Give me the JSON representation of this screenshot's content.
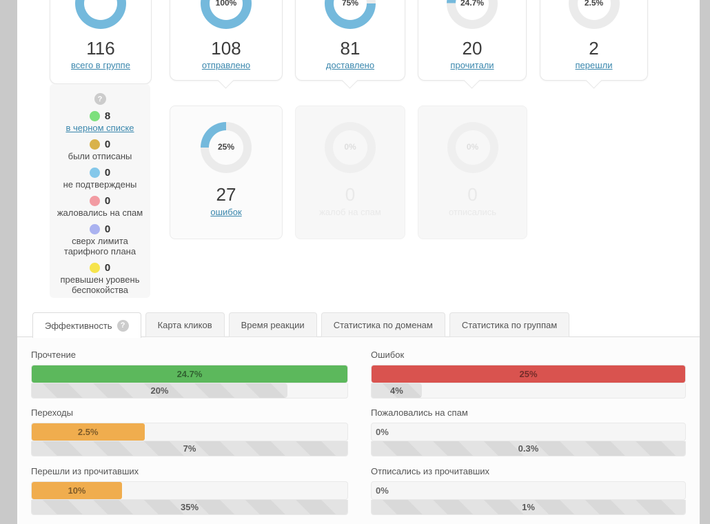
{
  "colors": {
    "donut_blue": "#74b9dc",
    "donut_track": "#ebebeb",
    "donut_track_muted": "#efefef",
    "green": "#5cb85c",
    "red": "#d9534f",
    "orange": "#f0ad4e",
    "link_blue": "#3a87ad",
    "side_strip": "#c9c9c9"
  },
  "top_cards": [
    {
      "value": "116",
      "label": "всего в группе",
      "percent": "",
      "pct": 100
    },
    {
      "value": "108",
      "label": "отправлено",
      "percent": "100%",
      "pct": 100
    },
    {
      "value": "81",
      "label": "доставлено",
      "percent": "75%",
      "pct": 75
    },
    {
      "value": "20",
      "label": "прочитали",
      "percent": "24.7%",
      "pct": 24.7
    },
    {
      "value": "2",
      "label": "перешли",
      "percent": "2.5%",
      "pct": 2.5
    }
  ],
  "blacklist_panel": {
    "items": [
      {
        "count": "8",
        "label": "в черном списке",
        "dot_color": "#7de07d"
      },
      {
        "count": "0",
        "label": "были отписаны",
        "dot_color": "#d9b24a"
      },
      {
        "count": "0",
        "label": "не подтверждены",
        "dot_color": "#85c8ea"
      },
      {
        "count": "0",
        "label": "жаловались на спам",
        "dot_color": "#f29ba2"
      },
      {
        "count": "0",
        "label": "сверх лимита тарифного плана",
        "dot_color": "#aab2f0"
      },
      {
        "count": "0",
        "label": "превышен уровень беспокойства",
        "dot_color": "#f6e44c"
      }
    ]
  },
  "mid_cards": [
    {
      "value": "27",
      "label": "ошибок",
      "percent": "25%",
      "pct": 25
    },
    {
      "value": "0",
      "label": "жалоб на спам",
      "percent": "0%",
      "pct": 0
    },
    {
      "value": "0",
      "label": "отписались",
      "percent": "0%",
      "pct": 0
    }
  ],
  "tabs": [
    {
      "label": "Эффективность"
    },
    {
      "label": "Карта кликов"
    },
    {
      "label": "Время реакции"
    },
    {
      "label": "Статистика по доменам"
    },
    {
      "label": "Статистика по группам"
    }
  ],
  "metrics": [
    {
      "title": "Прочтение",
      "value_label": "24.7%",
      "value_width_pct": 100,
      "bar_color": "#5cb85c",
      "avg_label": "20%",
      "avg_width_pct": 81
    },
    {
      "title": "Переходы",
      "value_label": "2.5%",
      "value_width_pct": 35.7,
      "bar_color": "#f0ad4e",
      "avg_label": "7%",
      "avg_width_pct": 100
    },
    {
      "title": "Перешли из прочитавших",
      "value_label": "10%",
      "value_width_pct": 28.6,
      "bar_color": "#f0ad4e",
      "avg_label": "35%",
      "avg_width_pct": 100
    },
    {
      "title": "Ошибок",
      "value_label": "25%",
      "value_width_pct": 100,
      "bar_color": "#d9534f",
      "avg_label": "4%",
      "avg_width_pct": 16
    },
    {
      "title": "Пожаловались на спам",
      "value_label": "0%",
      "value_width_pct": 0,
      "bar_color": "",
      "avg_label": "0.3%",
      "avg_width_pct": 100
    },
    {
      "title": "Отписались из прочитавших",
      "value_label": "0%",
      "value_width_pct": 0,
      "bar_color": "",
      "avg_label": "1%",
      "avg_width_pct": 100
    }
  ]
}
